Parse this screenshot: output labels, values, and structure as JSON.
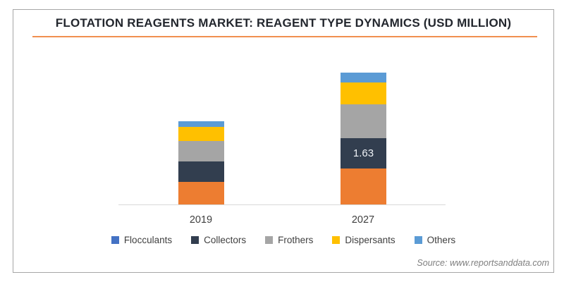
{
  "header": {
    "title": "FLOTATION REAGENTS MARKET: REAGENT TYPE DYNAMICS (USD MILLION)"
  },
  "footer": {
    "source": "Source: www.reportsanddata.com"
  },
  "colors": {
    "accent_rule": "#ED7D31",
    "frame_border": "#A6A6A6",
    "axis_line": "#D9D9D9",
    "title_text": "#23272E",
    "axis_label_text": "#3F3F3F",
    "legend_text": "#404040",
    "source_text": "#7F7F7F",
    "data_label_text": "#FFFFFF"
  },
  "chart_data": {
    "type": "bar",
    "stacked": true,
    "title": "FLOTATION REAGENTS MARKET: REAGENT TYPE DYNAMICS (USD MILLION)",
    "xlabel": "",
    "ylabel": "",
    "unit": "USD Million",
    "categories": [
      "2019",
      "2027"
    ],
    "series": [
      {
        "name": "Flocculants",
        "legend_color": "#4472C4",
        "bar_color": "#ED7D31",
        "values": [
          1.22,
          1.94
        ]
      },
      {
        "name": "Collectors",
        "legend_color": "#323E4F",
        "bar_color": "#323E4F",
        "values": [
          1.08,
          1.63
        ]
      },
      {
        "name": "Frothers",
        "legend_color": "#A5A5A5",
        "bar_color": "#A5A5A5",
        "values": [
          1.12,
          1.81
        ]
      },
      {
        "name": "Dispersants",
        "legend_color": "#FFC000",
        "bar_color": "#FFC000",
        "values": [
          0.74,
          1.18
        ]
      },
      {
        "name": "Others",
        "legend_color": "#5B9BD5",
        "bar_color": "#5B9BD5",
        "values": [
          0.32,
          0.53
        ]
      }
    ],
    "data_labels": [
      {
        "series": "Collectors",
        "category": "2027",
        "text": "1.63"
      }
    ],
    "legend_position": "bottom",
    "grid": false,
    "ylim": [
      0,
      7.5
    ]
  }
}
